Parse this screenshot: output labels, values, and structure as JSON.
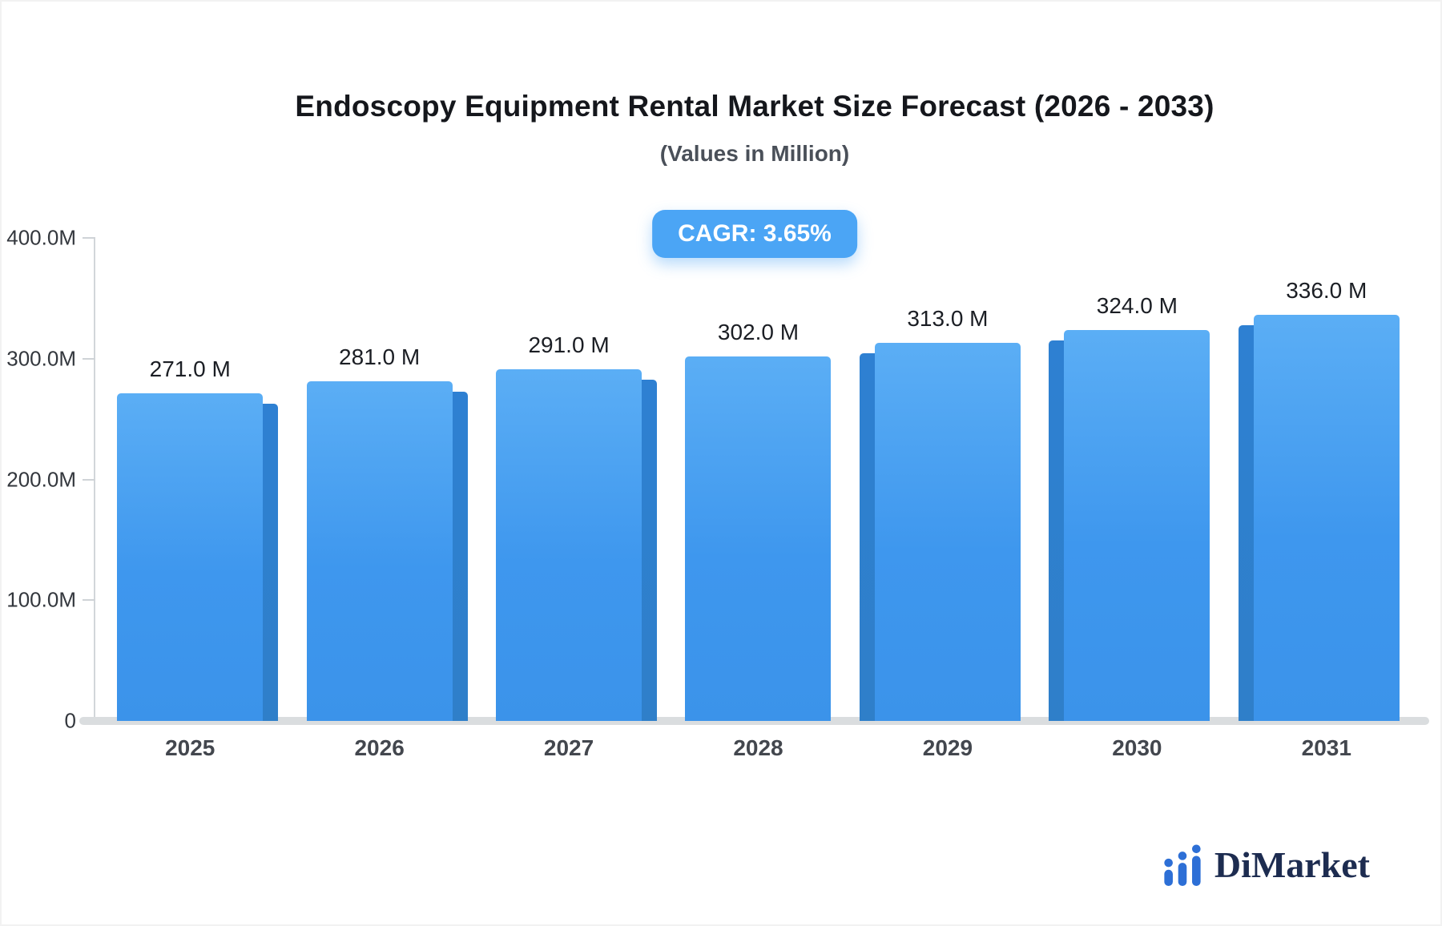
{
  "header": {
    "title": "Endoscopy Equipment Rental Market Size Forecast (2026 - 2033)",
    "subtitle": "(Values in Million)",
    "cagr_badge": "CAGR: 3.65%"
  },
  "chart_data": {
    "type": "bar",
    "title": "Endoscopy Equipment Rental Market Size Forecast (2026 - 2033)",
    "subtitle": "(Values in Million)",
    "categories": [
      "2025",
      "2026",
      "2027",
      "2028",
      "2029",
      "2030",
      "2031"
    ],
    "values": [
      271.0,
      281.0,
      291.0,
      302.0,
      313.0,
      324.0,
      336.0
    ],
    "value_labels": [
      "271.0 M",
      "281.0 M",
      "291.0 M",
      "302.0 M",
      "313.0 M",
      "324.0 M",
      "336.0 M"
    ],
    "xlabel": "",
    "ylabel": "",
    "ylim": [
      0,
      400
    ],
    "ytick_labels": [
      "400.0M",
      "300.0M",
      "200.0M",
      "100.0M",
      "0"
    ],
    "grid": false,
    "legend": false,
    "annotations": [
      "CAGR: 3.65%"
    ]
  },
  "branding": {
    "name": "DiMarket"
  },
  "colors": {
    "bar": "#3E97EE",
    "bar_light": "#5BAEF5",
    "bar_dark": "#2E80D2",
    "badge_bg": "#4BA5F5",
    "brand_navy": "#1D2C50",
    "brand_blue": "#2D6FD6"
  }
}
